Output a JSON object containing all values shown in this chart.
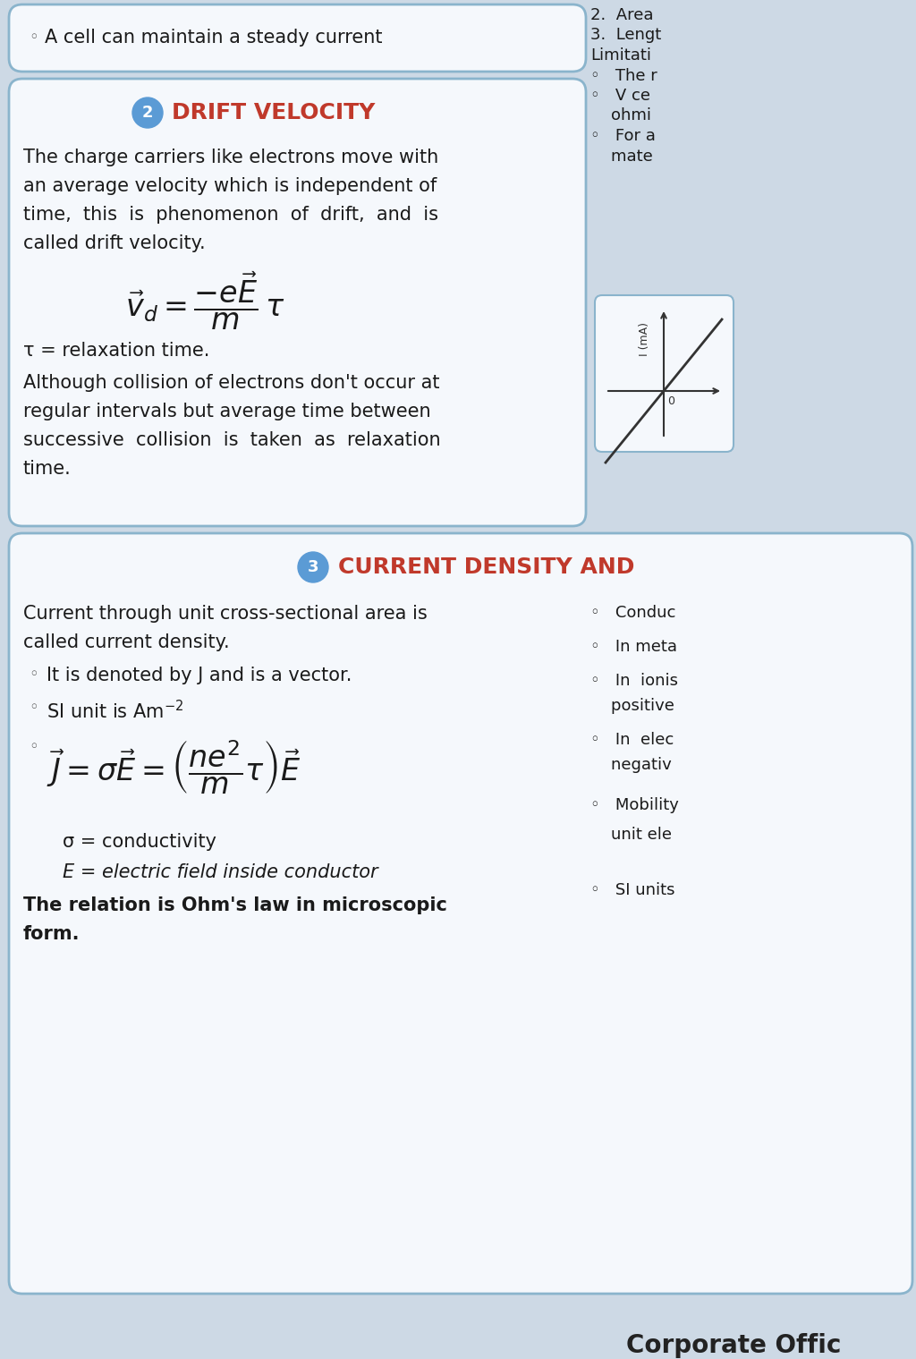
{
  "page_bg": "#cdd9e5",
  "box_bg": "#f5f8fc",
  "border_color": "#8ab4cc",
  "title2_color": "#c0392b",
  "title3_color": "#c0392b",
  "circle_bg": "#5b9bd5",
  "circle_text": "#ffffff",
  "text_color": "#1a1a1a",
  "section1_bullet": "A cell can maintain a steady current",
  "right_col_top": [
    "2.  Area",
    "3.  Lengt",
    "Limitati",
    "◦   The r",
    "◦   V ce",
    "    ohmi",
    "◦   For a",
    "    mate"
  ],
  "section2_title": "DRIFT VELOCITY",
  "section2_body_lines": [
    "The charge carriers like electrons move with",
    "an average velocity which is independent of",
    "time,  this  is  phenomenon  of  drift,  and  is",
    "called drift velocity."
  ],
  "section2_tau": "τ = relaxation time.",
  "section2_para2_lines": [
    "Although collision of electrons don't occur at",
    "regular intervals but average time between",
    "successive  collision  is  taken  as  relaxation",
    "time."
  ],
  "graph_label_y": "I (mA)",
  "graph_label_0": "0",
  "section3_title": "CURRENT DENSITY AND",
  "section3_body1_lines": [
    "Current through unit cross-sectional area is",
    "called current density."
  ],
  "section3_b1": "It is denoted by J and is a vector.",
  "section3_b2": "SI unit is Am",
  "section3_sigma": "σ = conductivity",
  "section3_E": "E = electric field inside conductor",
  "section3_ohm_lines": [
    "The relation is Ohm's law in microscopic",
    "form."
  ],
  "right_col_sec3": [
    "◦   Conduc",
    "◦   In meta",
    "◦   In  ionis",
    "    positive",
    "◦   In  elec",
    "    negativ",
    "◦   Mobility",
    "    unit ele",
    "◦   SI units"
  ],
  "footer": "Corporate Offic",
  "footer_fontsize": 20
}
